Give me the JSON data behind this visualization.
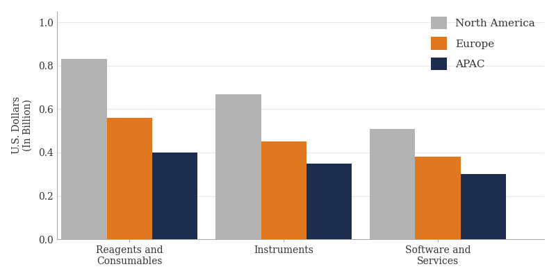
{
  "categories": [
    "Reagents and\nConsumables",
    "Instruments",
    "Software and\nServices"
  ],
  "series": [
    {
      "name": "North America",
      "values": [
        0.83,
        0.67,
        0.51
      ],
      "color": "#b3b3b3"
    },
    {
      "name": "Europe",
      "values": [
        0.56,
        0.45,
        0.38
      ],
      "color": "#e07820"
    },
    {
      "name": "APAC",
      "values": [
        0.4,
        0.35,
        0.3
      ],
      "color": "#1c2d4f"
    }
  ],
  "ylabel": "U.S. Dollars\n(In Billion)",
  "ylim": [
    0,
    1.05
  ],
  "yticks": [
    0.0,
    0.2,
    0.4,
    0.6,
    0.8,
    1.0
  ],
  "bar_width": 0.2,
  "group_positions": [
    0.32,
    1.0,
    1.68
  ],
  "background_color": "#ffffff",
  "axis_label_fontsize": 10,
  "tick_fontsize": 10,
  "legend_fontsize": 11
}
